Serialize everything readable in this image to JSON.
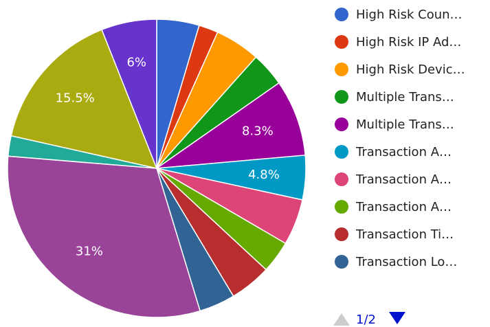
{
  "chart_data": {
    "type": "pie",
    "categories": [
      "High Risk Coun…",
      "High Risk IP Ad…",
      "High Risk Devic…",
      "Multiple Trans…",
      "Multiple Trans…",
      "Transaction A…",
      "Transaction A…",
      "Transaction A…",
      "Transaction Ti…",
      "Transaction Lo…",
      null,
      null,
      null,
      null
    ],
    "values": [
      4.6,
      2.1,
      4.9,
      3.7,
      8.3,
      4.8,
      5,
      3.5,
      4.5,
      3.9,
      31,
      2.2,
      15.5,
      6
    ],
    "value_labels": [
      null,
      null,
      null,
      null,
      "8.3%",
      "4.8%",
      null,
      null,
      null,
      null,
      "31%",
      null,
      "15.5%",
      "6%"
    ],
    "colors": [
      "#3366cc",
      "#dc3912",
      "#ff9900",
      "#109618",
      "#990099",
      "#0099c6",
      "#dd4477",
      "#66aa00",
      "#b82e2e",
      "#316395",
      "#994499",
      "#22aa99",
      "#aaaa11",
      "#6633cc"
    ],
    "legend_page": "1/2"
  }
}
